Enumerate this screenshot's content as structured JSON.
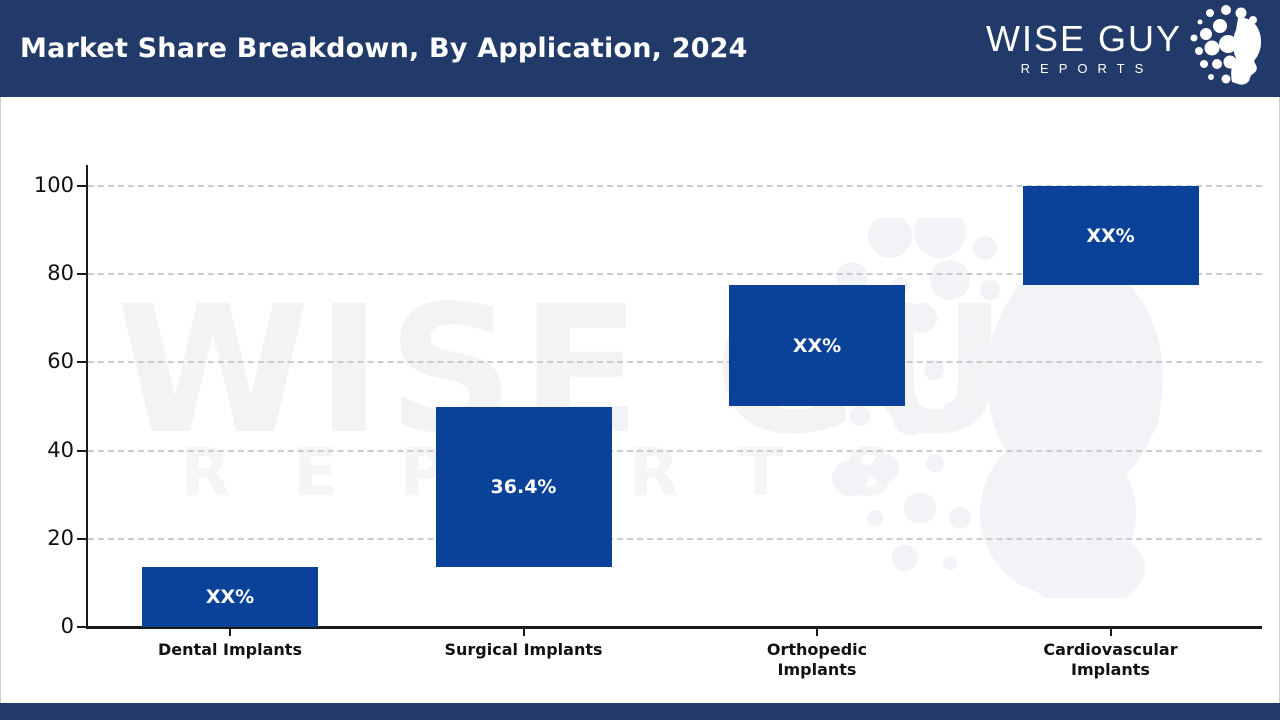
{
  "header": {
    "title": "Market Share Breakdown, By Application, 2024",
    "bg_color": "#213a69",
    "logo_line1": "WISE GUY",
    "logo_line2": "REPORTS"
  },
  "watermark": {
    "line1": "WISE GUY",
    "line2": "REPORTS"
  },
  "footer": {
    "bg_color": "#213a69"
  },
  "chart_data": {
    "type": "bar",
    "variant": "waterfall",
    "title": "Market Share Breakdown, By Application, 2024",
    "categories": [
      "Dental Implants",
      "Surgical Implants",
      "Orthopedic Implants",
      "Cardiovascular Implants"
    ],
    "segments": [
      {
        "category": "Dental Implants",
        "start": 0,
        "end": 13.6,
        "label": "XX%"
      },
      {
        "category": "Surgical Implants",
        "start": 13.6,
        "end": 50,
        "label": "36.4%"
      },
      {
        "category": "Orthopedic Implants",
        "start": 50,
        "end": 77.5,
        "label": "XX%"
      },
      {
        "category": "Cardiovascular Implants",
        "start": 77.5,
        "end": 100,
        "label": "XX%"
      }
    ],
    "bar_color": "#0a4299",
    "bar_label_color": "#ffffff",
    "ylim": [
      0,
      100
    ],
    "yticks": [
      0,
      20,
      40,
      60,
      80,
      100
    ],
    "grid": "horizontal-dashed",
    "gridline_color": "#cccccc",
    "legend": "none",
    "xlabel": "",
    "ylabel": ""
  }
}
